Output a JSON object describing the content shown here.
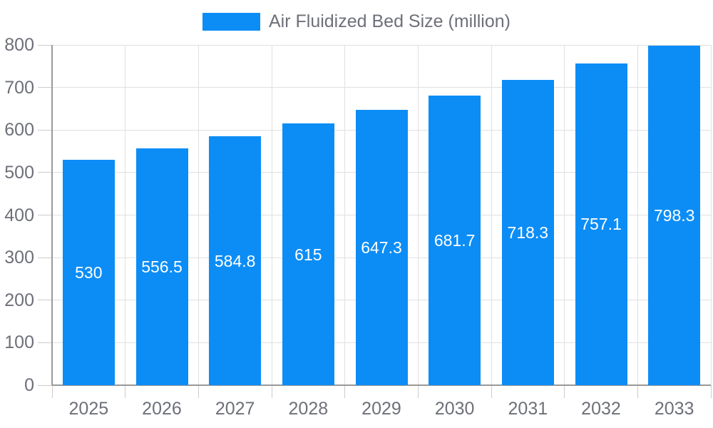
{
  "chart": {
    "legend_label": "Air Fluidized Bed Size (million)",
    "colors": {
      "bar": "#0C8DF6",
      "axis_line": "#999999",
      "gridline": "#E0E0E0",
      "tick": "#CCCCCC",
      "text": "#6E7079",
      "data_label_text": "#FFFFFF",
      "background": "#FFFFFF"
    }
  },
  "chart_data": {
    "type": "bar",
    "title": "",
    "legend_entries": [
      "Air Fluidized Bed Size (million)"
    ],
    "legend_position": "top",
    "categories": [
      "2025",
      "2026",
      "2027",
      "2028",
      "2029",
      "2030",
      "2031",
      "2032",
      "2033"
    ],
    "series": [
      {
        "name": "Air Fluidized Bed Size (million)",
        "values": [
          530,
          556.5,
          584.8,
          615,
          647.3,
          681.7,
          718.3,
          757.1,
          798.3
        ]
      }
    ],
    "data_labels": [
      "530",
      "556.5",
      "584.8",
      "615",
      "647.3",
      "681.7",
      "718.3",
      "757.1",
      "798.3"
    ],
    "data_label_position": "inside-center",
    "xlabel": "",
    "ylabel": "",
    "ylim": [
      0,
      800
    ],
    "ytick_step": 100,
    "ytick_labels": [
      "0",
      "100",
      "200",
      "300",
      "400",
      "500",
      "600",
      "700",
      "800"
    ],
    "grid": true
  }
}
